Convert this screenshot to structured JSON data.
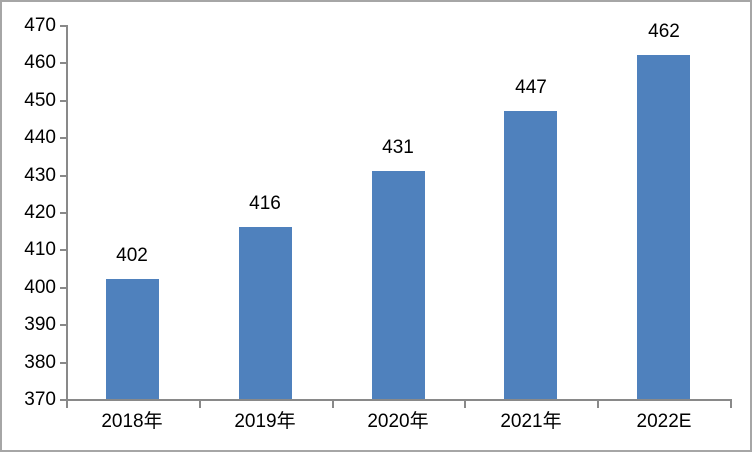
{
  "chart_data": {
    "type": "bar",
    "categories": [
      "2018年",
      "2019年",
      "2020年",
      "2021年",
      "2022E"
    ],
    "values": [
      402,
      416,
      431,
      447,
      462
    ],
    "data_labels": [
      402,
      416,
      431,
      447,
      462
    ],
    "yticks": [
      370,
      380,
      390,
      400,
      410,
      420,
      430,
      440,
      450,
      460,
      470
    ],
    "ylim": [
      370,
      470
    ],
    "grid": false,
    "legend": false,
    "colors": {
      "bar": "#4F81BD",
      "axis": "#898989",
      "text": "#000000",
      "frame_border": "#A6A6A6",
      "background": "#FFFFFF"
    }
  }
}
